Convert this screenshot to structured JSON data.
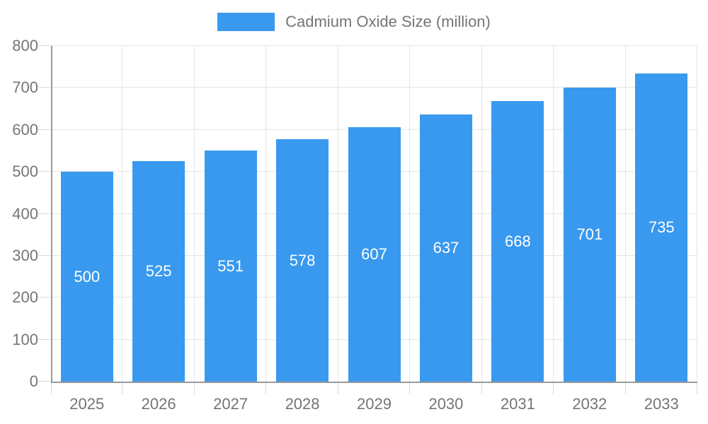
{
  "chart_data": {
    "type": "bar",
    "title": "Cadmium Oxide Size (million)",
    "categories": [
      "2025",
      "2026",
      "2027",
      "2028",
      "2029",
      "2030",
      "2031",
      "2032",
      "2033"
    ],
    "values": [
      500,
      525,
      551,
      578,
      607,
      637,
      668,
      701,
      735
    ],
    "xlabel": "",
    "ylabel": "",
    "ylim": [
      0,
      800
    ],
    "ytick_interval": 100,
    "grid": true,
    "legend_position": "top-center",
    "colors": {
      "bar": "#3899ee",
      "bar_value_text": "#ffffff",
      "axis_text": "#757575",
      "legend_text": "#757575",
      "gridline": "#e6e6e6",
      "tick": "#d9d9d9",
      "axis_line": "#999999",
      "background": "#ffffff"
    }
  }
}
